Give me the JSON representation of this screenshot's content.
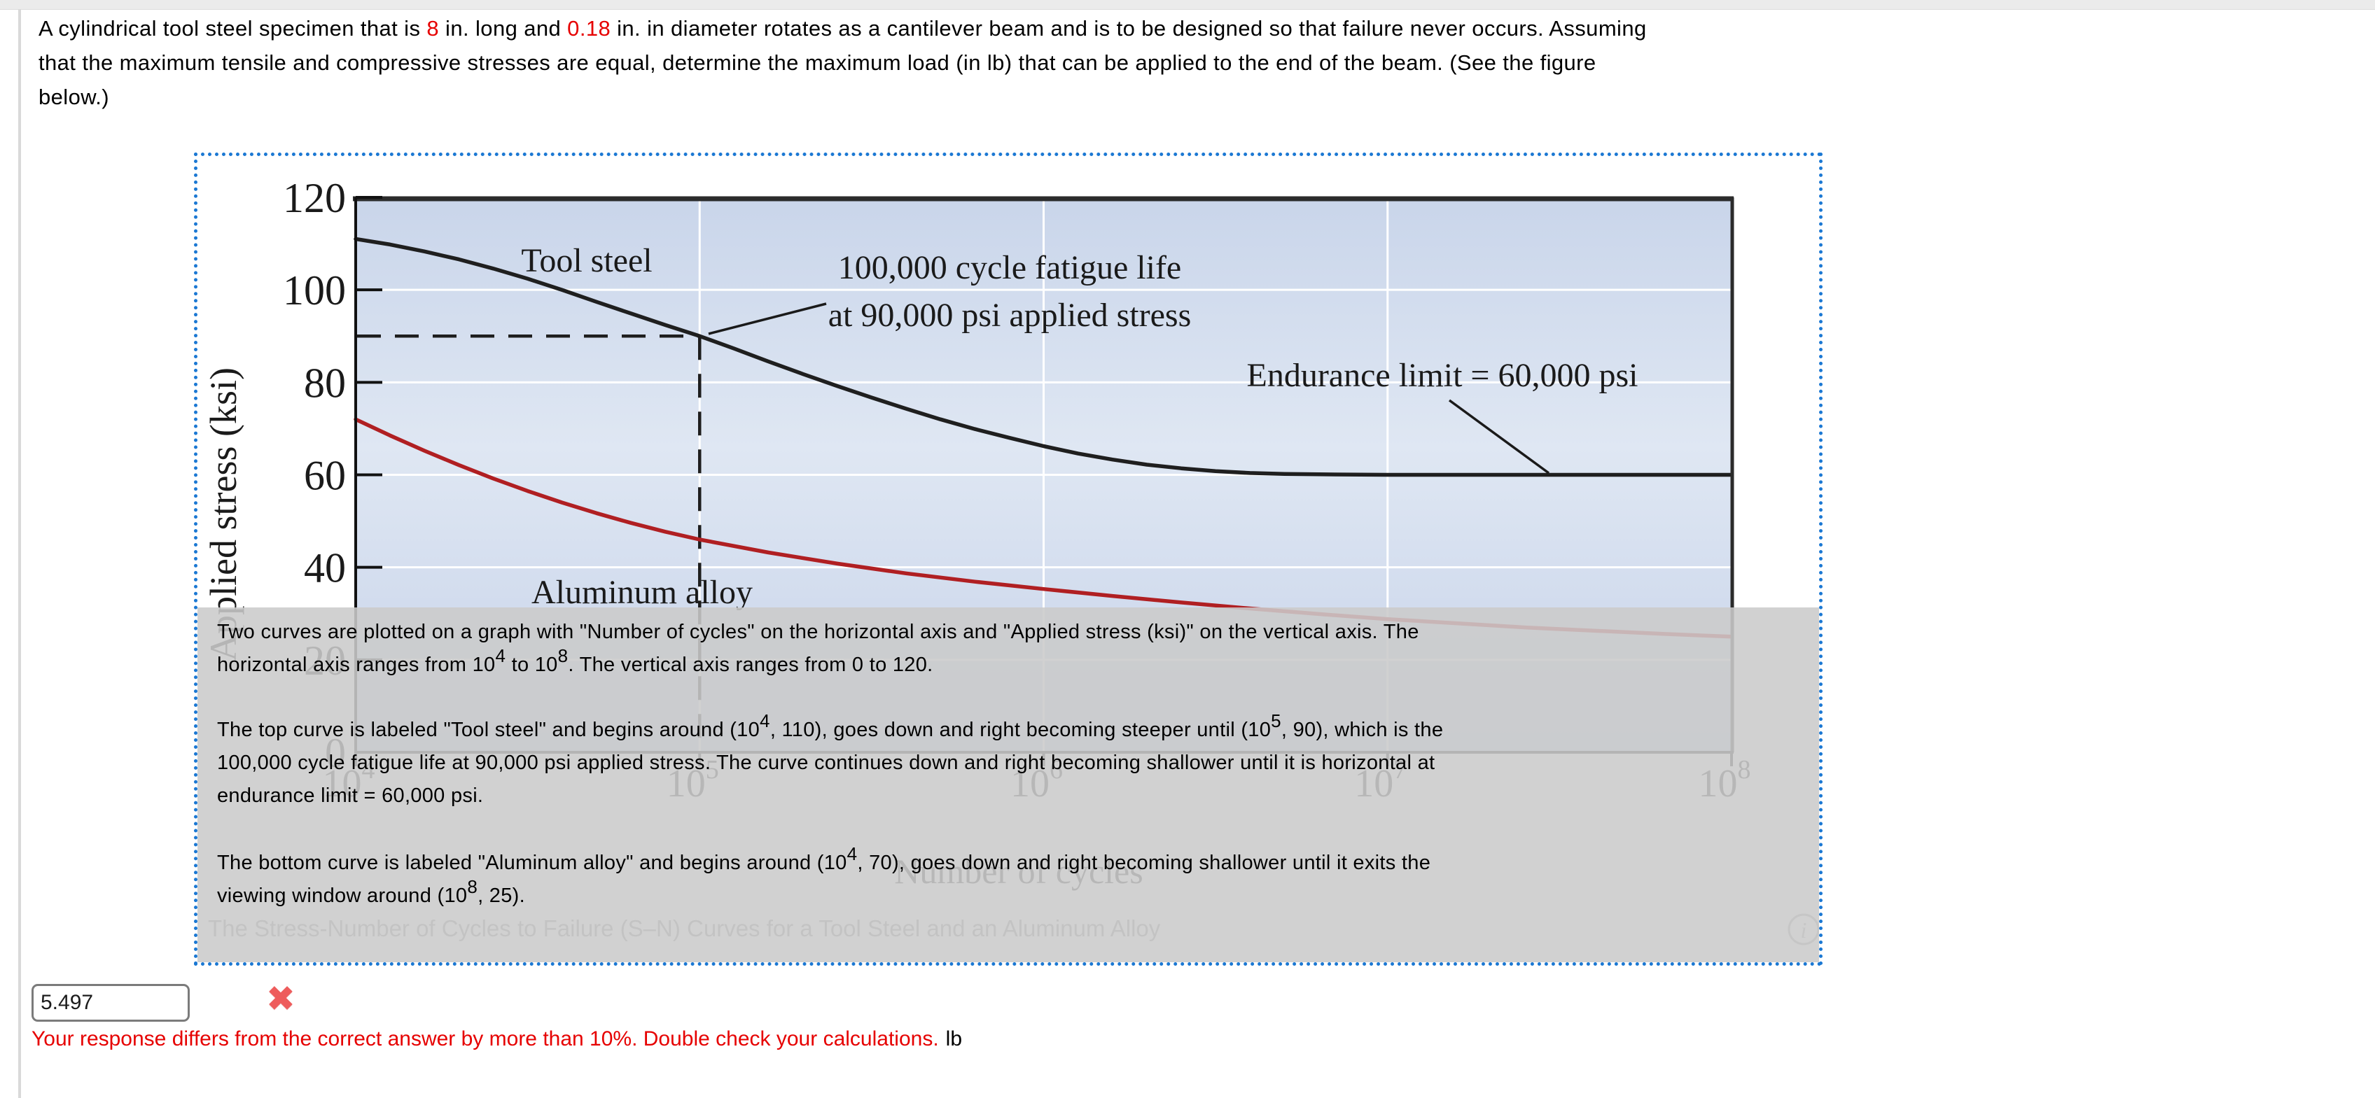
{
  "page": {
    "question_lines": [
      {
        "segments": [
          {
            "t": "A cylindrical tool steel specimen that is "
          },
          {
            "t": "8",
            "red": true
          },
          {
            "t": " in. long and "
          },
          {
            "t": "0.18",
            "red": true
          },
          {
            "t": " in. in diameter rotates as a cantilever beam and is to be designed so that failure never occurs. Assuming"
          }
        ]
      },
      {
        "segments": [
          {
            "t": "that the maximum tensile and compressive stresses are equal, determine the maximum load (in lb) that can be applied to the end of the beam. (See the figure"
          }
        ]
      },
      {
        "segments": [
          {
            "t": "below.)"
          }
        ]
      }
    ]
  },
  "figure": {
    "caption": "The Stress-Number of Cycles to Failure (S–N) Curves for a Tool Steel and an Aluminum Alloy",
    "info_icon": "i",
    "border_color": "#1b78d3"
  },
  "chart_data": {
    "type": "line",
    "title": "",
    "xlabel": "Number of cycles",
    "ylabel": "Applied stress (ksi)",
    "x_scale": "log",
    "x_tick_base": "10",
    "x_tick_exponents": [
      4,
      5,
      6,
      7,
      8
    ],
    "y_ticks": [
      120,
      100,
      80,
      60,
      40,
      20,
      0
    ],
    "ylim": [
      0,
      120
    ],
    "xlim_log": [
      4,
      8
    ],
    "grid": true,
    "gridline_color": "#ffffff",
    "bg_gradient": [
      "#c9d5ea",
      "#dfe7f3",
      "#c6d2e9"
    ],
    "frame_color": "#2b2b2b",
    "series": [
      {
        "name": "Tool steel",
        "color": "#1f1f1f",
        "points_log_ksi": [
          [
            4,
            111
          ],
          [
            4.1,
            109.8
          ],
          [
            4.2,
            108.3
          ],
          [
            4.3,
            106.6
          ],
          [
            4.4,
            104.6
          ],
          [
            4.5,
            102.4
          ],
          [
            4.6,
            100
          ],
          [
            4.7,
            97.4
          ],
          [
            4.8,
            94.9
          ],
          [
            4.9,
            92.4
          ],
          [
            5,
            90
          ],
          [
            5.1,
            87.3
          ],
          [
            5.2,
            84.5
          ],
          [
            5.3,
            81.8
          ],
          [
            5.4,
            79.2
          ],
          [
            5.5,
            76.7
          ],
          [
            5.6,
            74.3
          ],
          [
            5.7,
            72
          ],
          [
            5.8,
            69.9
          ],
          [
            5.9,
            68
          ],
          [
            6,
            66.2
          ],
          [
            6.1,
            64.6
          ],
          [
            6.2,
            63.3
          ],
          [
            6.3,
            62.2
          ],
          [
            6.4,
            61.4
          ],
          [
            6.5,
            60.8
          ],
          [
            6.6,
            60.4
          ],
          [
            6.7,
            60.2
          ],
          [
            6.8,
            60.1
          ],
          [
            7,
            60
          ],
          [
            7.5,
            60
          ],
          [
            8,
            60
          ]
        ]
      },
      {
        "name": "Aluminum alloy",
        "color": "#b01f22",
        "points_log_ksi": [
          [
            4,
            72
          ],
          [
            4.1,
            68.5
          ],
          [
            4.2,
            65.2
          ],
          [
            4.3,
            62.1
          ],
          [
            4.4,
            59.2
          ],
          [
            4.5,
            56.5
          ],
          [
            4.6,
            54
          ],
          [
            4.7,
            51.7
          ],
          [
            4.8,
            49.6
          ],
          [
            4.9,
            47.7
          ],
          [
            5,
            46
          ],
          [
            5.2,
            43.2
          ],
          [
            5.4,
            40.8
          ],
          [
            5.6,
            38.7
          ],
          [
            5.8,
            36.9
          ],
          [
            6,
            35.3
          ],
          [
            6.2,
            33.8
          ],
          [
            6.4,
            32.4
          ],
          [
            6.6,
            31.1
          ],
          [
            6.8,
            29.9
          ],
          [
            7,
            28.8
          ],
          [
            7.2,
            27.9
          ],
          [
            7.4,
            27
          ],
          [
            7.6,
            26.3
          ],
          [
            7.8,
            25.6
          ],
          [
            8,
            25
          ]
        ]
      }
    ],
    "annotations": {
      "tool_steel_label": "Tool steel",
      "fatigue_line1": "100,000 cycle fatigue life",
      "fatigue_line2": "at 90,000 psi applied stress",
      "endurance_label": "Endurance limit = 60,000 psi",
      "aluminum_label": "Aluminum alloy"
    },
    "guides": {
      "stress_ksi": 90,
      "cycles_log": 5
    }
  },
  "overlay": {
    "bg": "#cbcbcb",
    "paragraphs": [
      {
        "lines": [
          {
            "segments": [
              {
                "t": "Two curves are plotted on a graph with \"Number of cycles\" on the horizontal axis and \"Applied stress (ksi)\" on the vertical axis. The"
              }
            ]
          },
          {
            "segments": [
              {
                "t": "horizontal axis ranges from 10"
              },
              {
                "sup": "4"
              },
              {
                "t": " to 10"
              },
              {
                "sup": "8"
              },
              {
                "t": ". The vertical axis ranges from 0 to 120."
              }
            ]
          }
        ]
      },
      {
        "lines": [
          {
            "segments": [
              {
                "t": "The top curve is labeled \"Tool steel\" and begins around (10"
              },
              {
                "sup": "4"
              },
              {
                "t": ", 110), goes down and right becoming steeper until (10"
              },
              {
                "sup": "5"
              },
              {
                "t": ", 90), which is the"
              }
            ]
          },
          {
            "segments": [
              {
                "t": "100,000 cycle fatigue life at 90,000 psi applied stress. The curve continues down and right becoming shallower until it is horizontal at"
              }
            ]
          },
          {
            "segments": [
              {
                "t": "endurance limit = 60,000 psi."
              }
            ]
          }
        ]
      },
      {
        "lines": [
          {
            "segments": [
              {
                "t": "The bottom curve is labeled \"Aluminum alloy\" and begins around (10"
              },
              {
                "sup": "4"
              },
              {
                "t": ", 70), goes down and right becoming shallower until it exits the"
              }
            ]
          },
          {
            "segments": [
              {
                "t": "viewing window around (10"
              },
              {
                "sup": "8"
              },
              {
                "t": ", 25)."
              }
            ]
          }
        ]
      }
    ]
  },
  "answer": {
    "input_value": "5.497",
    "wrong_icon": "✖",
    "feedback": "Your response differs from the correct answer by more than 10%. Double check your calculations.",
    "unit": "lb",
    "error_color": "#e60000"
  }
}
